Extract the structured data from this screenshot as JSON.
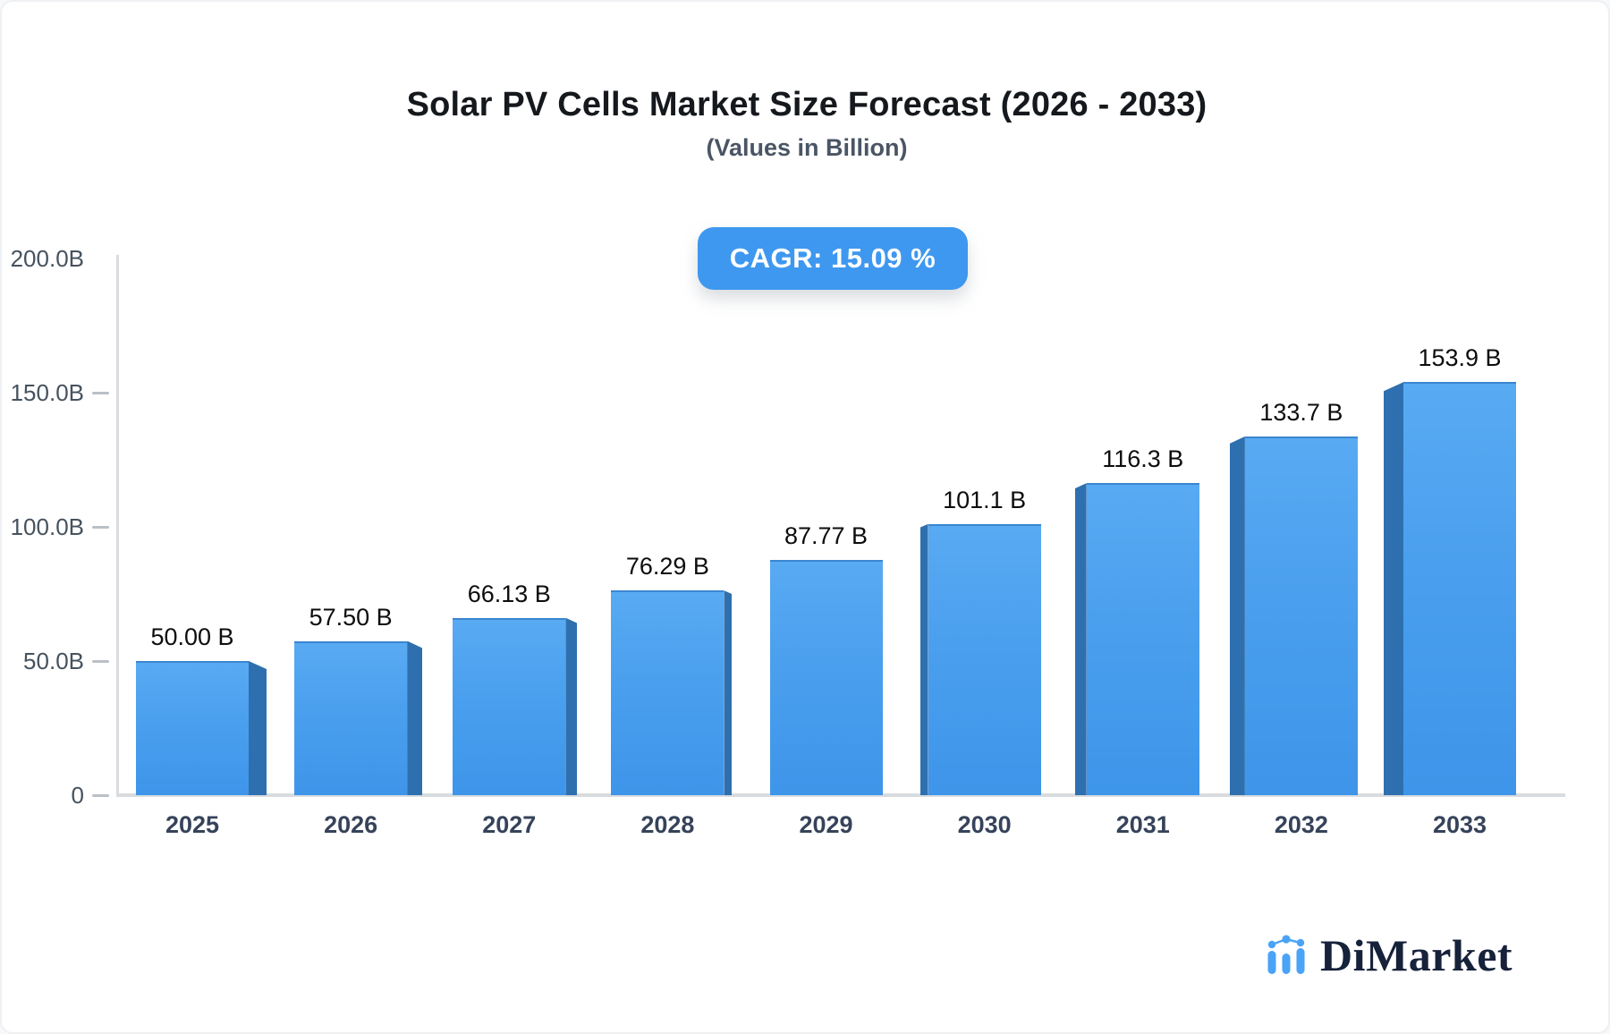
{
  "title": "Solar PV Cells Market Size Forecast (2026 - 2033)",
  "subtitle": "(Values in Billion)",
  "badge": {
    "label": "CAGR: 15.09 %"
  },
  "brand": {
    "name": "DiMarket",
    "icon": "bar-line-chart-icon"
  },
  "colors": {
    "bar_face": "#4A9FEE",
    "bar_side": "#2E70AF",
    "badge_bg": "#3E98EF",
    "axis": "#D9DCDF",
    "y_tick_label": "#46525E",
    "year_label": "#36435A",
    "value_label": "#0D0D0D",
    "brand_text": "#16213A",
    "brand_icon": "#4AA3F7"
  },
  "chart_data": {
    "type": "bar",
    "categories": [
      "2025",
      "2026",
      "2027",
      "2028",
      "2029",
      "2030",
      "2031",
      "2032",
      "2033"
    ],
    "values": [
      50.0,
      57.5,
      66.13,
      76.29,
      87.77,
      101.1,
      116.3,
      133.7,
      153.9
    ],
    "value_labels": [
      "50.00 B",
      "57.50 B",
      "66.13 B",
      "76.29 B",
      "87.77 B",
      "101.1 B",
      "116.3 B",
      "133.7 B",
      "153.9 B"
    ],
    "title": "Solar PV Cells Market Size Forecast (2026 - 2033)",
    "subtitle": "(Values in Billion)",
    "annotation": "CAGR: 15.09 %",
    "xlabel": "",
    "ylabel": "",
    "ylim": [
      0,
      200
    ],
    "y_ticks": [
      "200.0B",
      "150.0B",
      "100.0B",
      "50.0B",
      "0"
    ],
    "y_tick_values": [
      200,
      150,
      100,
      50,
      0
    ],
    "grid": false,
    "legend": false,
    "style": "pseudo-3d bars, perspective toward center"
  }
}
